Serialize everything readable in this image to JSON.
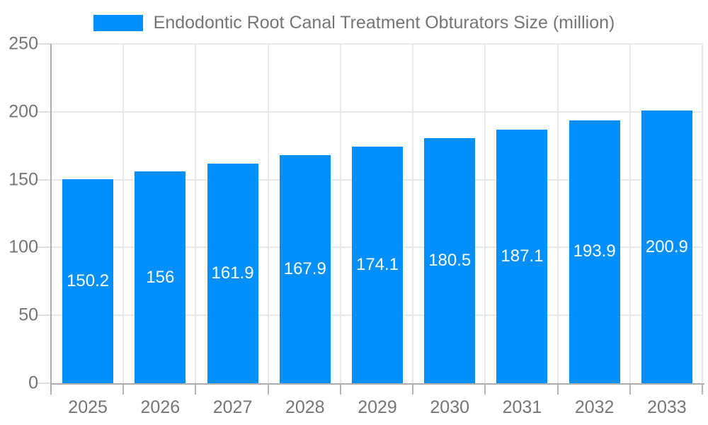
{
  "legend": {
    "swatch_color": "#008FFB"
  },
  "chart_data": {
    "type": "bar",
    "title": "Endodontic Root Canal Treatment Obturators Size (million)",
    "categories": [
      "2025",
      "2026",
      "2027",
      "2028",
      "2029",
      "2030",
      "2031",
      "2032",
      "2033"
    ],
    "series": [
      {
        "name": "Endodontic Root Canal Treatment Obturators Size (million)",
        "values": [
          150.2,
          156,
          161.9,
          167.9,
          174.1,
          180.5,
          187.1,
          193.9,
          200.9
        ]
      }
    ],
    "value_labels": [
      "150.2",
      "156",
      "161.9",
      "167.9",
      "174.1",
      "180.5",
      "187.1",
      "193.9",
      "200.9"
    ],
    "xlabel": "",
    "ylabel": "",
    "ylim": [
      0,
      250
    ],
    "yticks": [
      0,
      50,
      100,
      150,
      200,
      250
    ],
    "grid": true,
    "legend_position": "top",
    "colors": {
      "bar": "#008FFB",
      "value_label": "#ffffff",
      "axis_label": "#757575",
      "title": "#757575",
      "gridline": "#e8e8e8",
      "axis_line": "#adadad",
      "tick": "#b3b3b3"
    }
  }
}
